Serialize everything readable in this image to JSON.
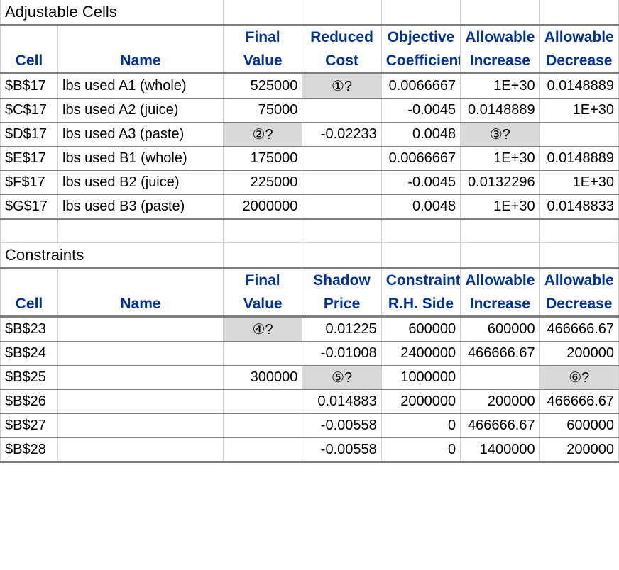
{
  "colors": {
    "header_text": "#003399",
    "grid_light": "#d0d0d0",
    "grid_dark": "#808080",
    "shaded_bg": "#d9d9d9",
    "background": "#ffffff",
    "text": "#000000"
  },
  "adjustable": {
    "title": "Adjustable Cells",
    "headers_top": [
      "",
      "",
      "Final",
      "Reduced",
      "Objective",
      "Allowable",
      "Allowable"
    ],
    "headers_bot": [
      "Cell",
      "Name",
      "Value",
      "Cost",
      "Coefficient",
      "Increase",
      "Decrease"
    ],
    "rows": [
      {
        "cell": "$B$17",
        "name": "lbs used A1 (whole)",
        "final": "525000",
        "reduced": "①?",
        "reduced_shaded": true,
        "obj": "0.0066667",
        "inc": "1E+30",
        "dec": "0.0148889"
      },
      {
        "cell": "$C$17",
        "name": "lbs used A2 (juice)",
        "final": "75000",
        "reduced": "",
        "obj": "-0.0045",
        "inc": "0.0148889",
        "dec": "1E+30"
      },
      {
        "cell": "$D$17",
        "name": "lbs used A3 (paste)",
        "final": "②?",
        "final_shaded": true,
        "reduced": "-0.02233",
        "obj": "0.0048",
        "inc": "③?",
        "inc_shaded": true,
        "dec": ""
      },
      {
        "cell": "$E$17",
        "name": "lbs used B1 (whole)",
        "final": "175000",
        "reduced": "",
        "obj": "0.0066667",
        "inc": "1E+30",
        "dec": "0.0148889"
      },
      {
        "cell": "$F$17",
        "name": "lbs used B2 (juice)",
        "final": "225000",
        "reduced": "",
        "obj": "-0.0045",
        "inc": "0.0132296",
        "dec": "1E+30"
      },
      {
        "cell": "$G$17",
        "name": "lbs used B3 (paste)",
        "final": "2000000",
        "reduced": "",
        "obj": "0.0048",
        "inc": "1E+30",
        "dec": "0.0148833"
      }
    ]
  },
  "constraints": {
    "title": "Constraints",
    "headers_top": [
      "",
      "",
      "Final",
      "Shadow",
      "Constraint",
      "Allowable",
      "Allowable"
    ],
    "headers_bot": [
      "Cell",
      "Name",
      "Value",
      "Price",
      "R.H. Side",
      "Increase",
      "Decrease"
    ],
    "rows": [
      {
        "cell": "$B$23",
        "name": "",
        "final": "④?",
        "final_shaded": true,
        "price": "0.01225",
        "rhs": "600000",
        "inc": "600000",
        "dec": "466666.67"
      },
      {
        "cell": "$B$24",
        "name": "",
        "final": "",
        "price": "-0.01008",
        "rhs": "2400000",
        "inc": "466666.67",
        "dec": "200000"
      },
      {
        "cell": "$B$25",
        "name": "",
        "final": "300000",
        "price": "⑤?",
        "price_shaded": true,
        "rhs": "1000000",
        "inc": "",
        "dec": "⑥?",
        "dec_shaded": true
      },
      {
        "cell": "$B$26",
        "name": "",
        "final": "",
        "price": "0.014883",
        "rhs": "2000000",
        "inc": "200000",
        "dec": "466666.67"
      },
      {
        "cell": "$B$27",
        "name": "",
        "final": "",
        "price": "-0.00558",
        "rhs": "0",
        "inc": "466666.67",
        "dec": "600000"
      },
      {
        "cell": "$B$28",
        "name": "",
        "final": "",
        "price": "-0.00558",
        "rhs": "0",
        "inc": "1400000",
        "dec": "200000"
      }
    ]
  }
}
